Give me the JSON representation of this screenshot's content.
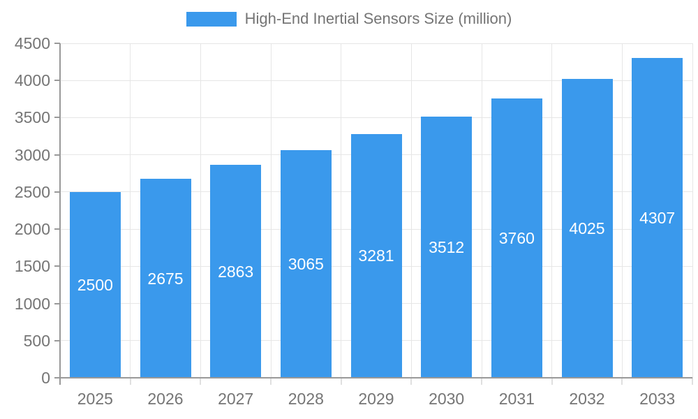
{
  "legend": {
    "position": "top",
    "label": "High-End Inertial Sensors Size (million)"
  },
  "chart_data": {
    "type": "bar",
    "title": "High-End Inertial Sensors Size (million)",
    "categories": [
      "2025",
      "2026",
      "2027",
      "2028",
      "2029",
      "2030",
      "2031",
      "2032",
      "2033"
    ],
    "series": [
      {
        "name": "High-End Inertial Sensors Size (million)",
        "values": [
          2500,
          2675,
          2863,
          3065,
          3281,
          3512,
          3760,
          4025,
          4307
        ]
      }
    ],
    "xlabel": "",
    "ylabel": "",
    "ylim": [
      0,
      4500
    ],
    "yticks": [
      0,
      500,
      1000,
      1500,
      2000,
      2500,
      3000,
      3500,
      4000,
      4500
    ],
    "grid": true,
    "legend_position": "top",
    "value_labels_inside_bars": true,
    "colors": {
      "bar": "#3a99ec",
      "bar_value_label": "#ffffff",
      "axis_text": "#757575",
      "legend_text": "#757575",
      "gridline": "#e6e6e6",
      "axis_line": "#999999",
      "xtick_line": "#e0e0e0",
      "background": "#ffffff"
    }
  }
}
